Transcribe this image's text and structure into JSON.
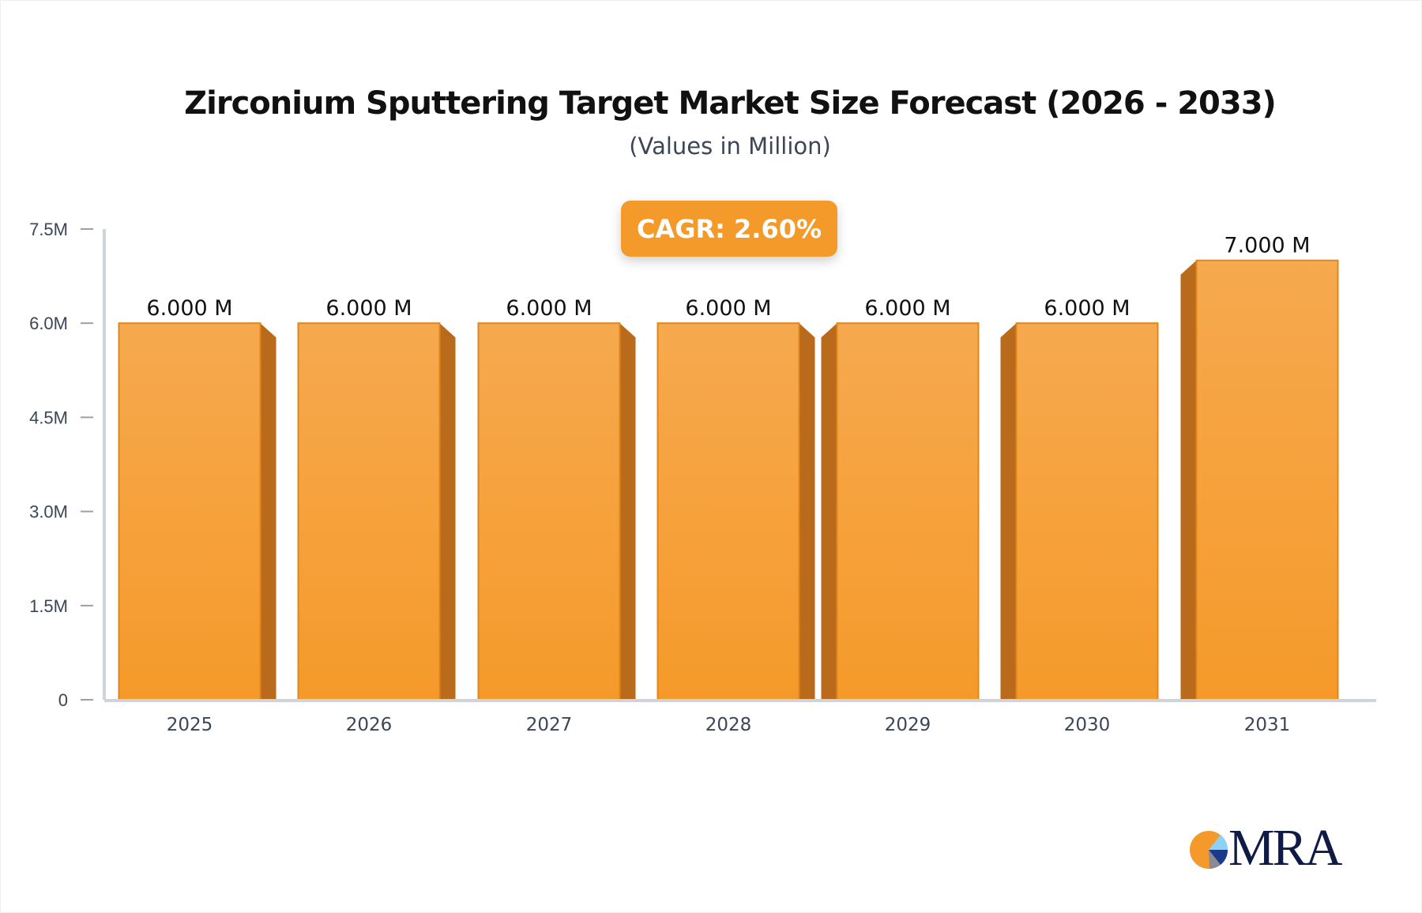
{
  "chart_data": {
    "type": "bar",
    "title": "Zirconium Sputtering Target Market Size Forecast (2026 - 2033)",
    "subtitle": "(Values in Million)",
    "annotation": "CAGR: 2.60%",
    "categories": [
      "2025",
      "2026",
      "2027",
      "2028",
      "2029",
      "2030",
      "2031"
    ],
    "values": [
      6.0,
      6.0,
      6.0,
      6.0,
      6.0,
      6.0,
      7.0
    ],
    "data_labels": [
      "6.000 M",
      "6.000 M",
      "6.000 M",
      "6.000 M",
      "6.000 M",
      "6.000 M",
      "7.000 M"
    ],
    "y_ticks": [
      0,
      1.5,
      3.0,
      4.5,
      6.0,
      7.5
    ],
    "y_tick_labels": [
      "0",
      "1.5M",
      "3.0M",
      "4.5M",
      "6.0M",
      "7.5M"
    ],
    "ylim": [
      0,
      7.5
    ],
    "grid": false,
    "colors": {
      "bar_front": "#f59a2a",
      "bar_top": "#f6a94e",
      "bar_side": "#b96a1a",
      "axis": "#d0d3da"
    }
  },
  "logo": {
    "text": "MRA"
  }
}
